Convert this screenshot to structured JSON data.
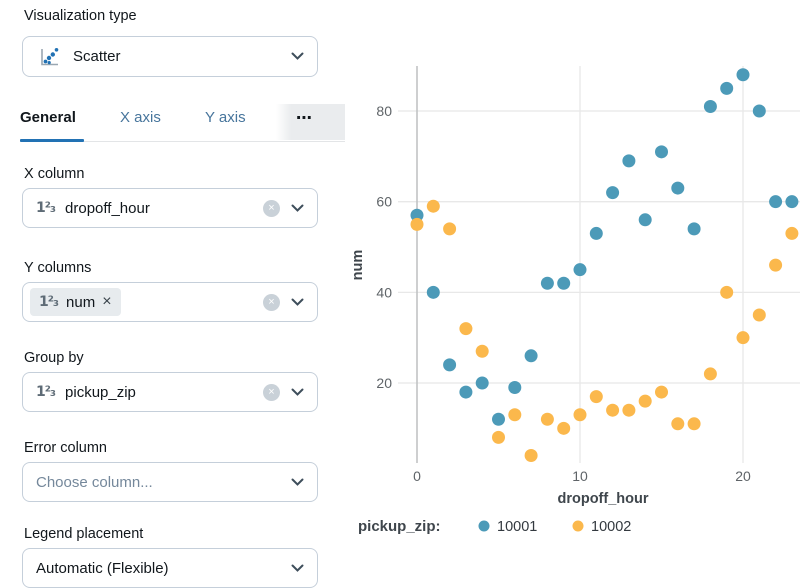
{
  "panel": {
    "viz_type_label": "Visualization type",
    "viz_type_value": "Scatter",
    "tabs": [
      "General",
      "X axis",
      "Y axis"
    ],
    "more_tabs_label": "⋯",
    "fields": [
      {
        "label": "X column",
        "value": "dropoff_hour"
      },
      {
        "label": "Y columns",
        "value": "num"
      },
      {
        "label": "Group by",
        "value": "pickup_zip"
      },
      {
        "label": "Error column",
        "placeholder": "Choose column..."
      },
      {
        "label": "Legend placement",
        "value": "Automatic (Flexible)"
      }
    ],
    "icons": {
      "number_type": "1²₃",
      "clear": "×",
      "remove": "×"
    },
    "accent_color": "#2272B4"
  },
  "chart_data": {
    "type": "scatter",
    "title": "",
    "xlabel": "dropoff_hour",
    "ylabel": "num",
    "legend_title": "pickup_zip:",
    "legend_position": "bottom",
    "grid": true,
    "x_ticks": [
      0,
      10,
      20
    ],
    "y_ticks": [
      20,
      40,
      60,
      80
    ],
    "xlim": [
      -0.7,
      23.6
    ],
    "ylim": [
      2,
      90
    ],
    "x": [
      0,
      1,
      2,
      3,
      4,
      5,
      6,
      7,
      8,
      9,
      10,
      11,
      12,
      13,
      14,
      15,
      16,
      17,
      18,
      19,
      20,
      21,
      22,
      23
    ],
    "series": [
      {
        "name": "10001",
        "color": "#4C9AB8",
        "values": [
          57,
          40,
          24,
          18,
          20,
          12,
          19,
          26,
          42,
          42,
          45,
          53,
          62,
          69,
          56,
          71,
          63,
          54,
          81,
          85,
          88,
          80,
          60,
          60
        ]
      },
      {
        "name": "10002",
        "color": "#FBB84C",
        "values": [
          55,
          59,
          54,
          32,
          27,
          8,
          13,
          4,
          12,
          10,
          13,
          17,
          14,
          14,
          16,
          18,
          11,
          11,
          22,
          40,
          30,
          35,
          46,
          53
        ]
      }
    ]
  }
}
